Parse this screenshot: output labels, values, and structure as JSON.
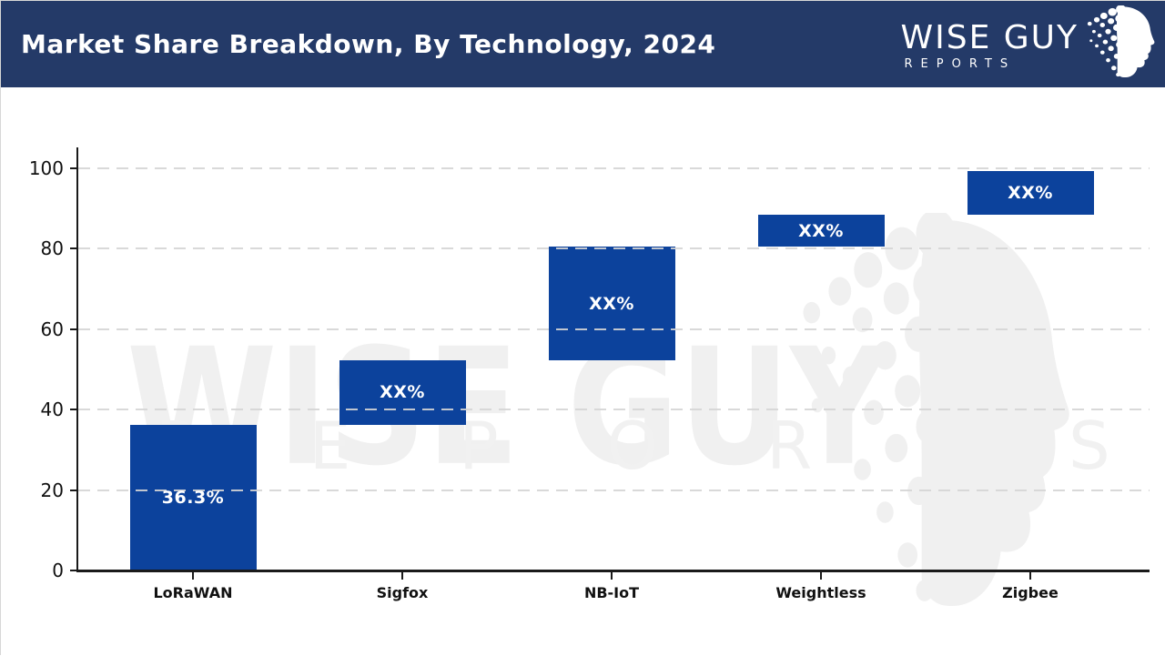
{
  "header": {
    "title": "Market Share Breakdown, By Technology, 2024",
    "bg_color": "#243A68",
    "logo": {
      "line1": "WISE GUY",
      "line2": "REPORTS",
      "icon": "dotted-head-icon"
    }
  },
  "watermark": {
    "line1": "WISE GUY",
    "line2": "R E P O R T S",
    "color": "#F0F0F0"
  },
  "chart_data": {
    "type": "bar",
    "subtype": "waterfall",
    "title": "Market Share Breakdown, By Technology, 2024",
    "categories": [
      "LoRaWAN",
      "Sigfox",
      "NB-IoT",
      "Weightless",
      "Zigbee"
    ],
    "series": [
      {
        "name": "Market Share (%)",
        "segments": [
          {
            "category": "LoRaWAN",
            "start": 0,
            "end": 36.3,
            "label": "36.3%"
          },
          {
            "category": "Sigfox",
            "start": 36.3,
            "end": 52.3,
            "label": "XX%"
          },
          {
            "category": "NB-IoT",
            "start": 52.3,
            "end": 80.5,
            "label": "XX%"
          },
          {
            "category": "Weightless",
            "start": 80.5,
            "end": 88.4,
            "label": "XX%"
          },
          {
            "category": "Zigbee",
            "start": 88.4,
            "end": 99.4,
            "label": "XX%"
          }
        ]
      }
    ],
    "xlabel": "",
    "ylabel": "",
    "ylim": [
      0,
      105
    ],
    "yticks": [
      0,
      20,
      40,
      60,
      80,
      100
    ],
    "grid": "horizontal-dashed",
    "legend": "none",
    "bar_color": "#0C429C",
    "bar_label_color": "#FFFFFF",
    "axis_color": "#1A1A1A",
    "grid_color": "#D5D5D5"
  }
}
